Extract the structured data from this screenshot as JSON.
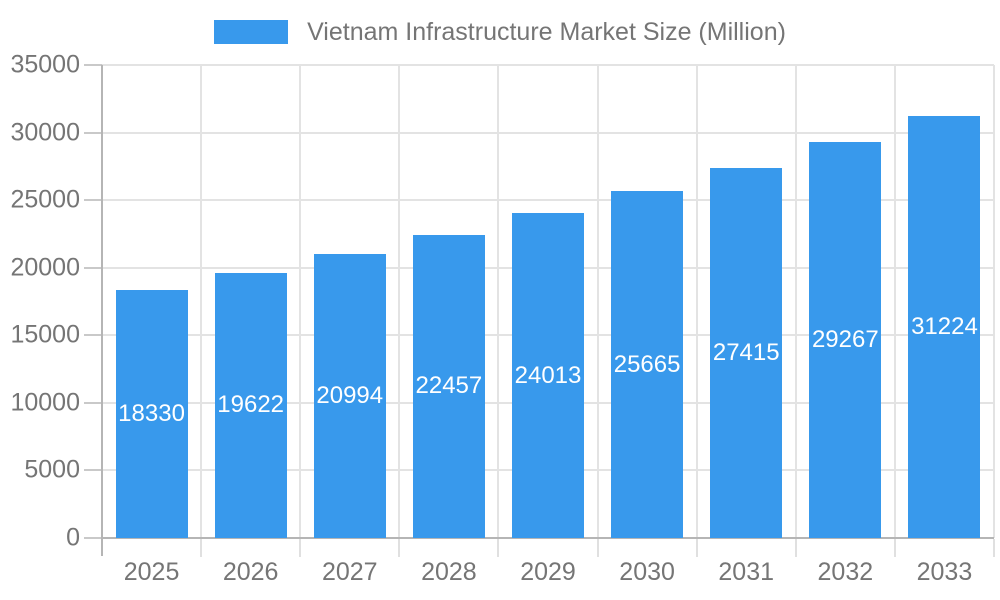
{
  "chart_data": {
    "type": "bar",
    "title": "Vietnam Infrastructure Market Size (Million)",
    "categories": [
      "2025",
      "2026",
      "2027",
      "2028",
      "2029",
      "2030",
      "2031",
      "2032",
      "2033"
    ],
    "values": [
      18330,
      19622,
      20994,
      22457,
      24013,
      25665,
      27415,
      29267,
      31224
    ],
    "xlabel": "",
    "ylabel": "",
    "ylim": [
      0,
      35000
    ],
    "y_step": 5000,
    "y_tick_labels": [
      "0",
      "5000",
      "10000",
      "15000",
      "20000",
      "25000",
      "30000",
      "35000"
    ],
    "grid": true,
    "legend_position": "top",
    "value_labels_position": "inside-middle",
    "colors": {
      "bar": "#3899EC",
      "value_label_text": "#ffffff",
      "axis_text": "#757575",
      "gridline": "#e3e3e3",
      "axis_line": "#b5b5b5",
      "y_tick_mark": "#c9c9c9",
      "x_tick_mark": "#e0e0e0",
      "background": "#ffffff"
    }
  }
}
